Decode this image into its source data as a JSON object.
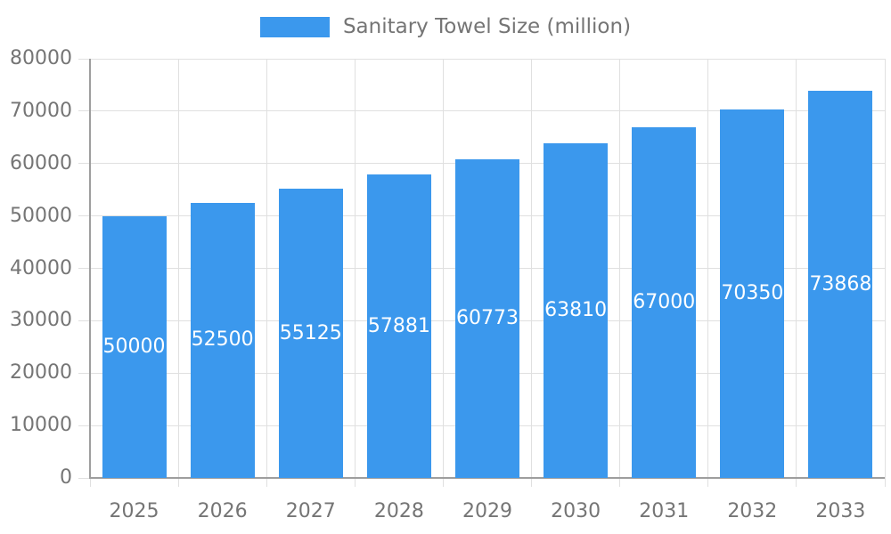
{
  "chart_data": {
    "type": "bar",
    "title": "Sanitary Towel Size (million)",
    "categories": [
      "2025",
      "2026",
      "2027",
      "2028",
      "2029",
      "2030",
      "2031",
      "2032",
      "2033"
    ],
    "values": [
      50000,
      52500,
      55125,
      57881,
      60773,
      63810,
      67000,
      70350,
      73868
    ],
    "series": [
      {
        "name": "Sanitary Towel Size (million)",
        "values": [
          50000,
          52500,
          55125,
          57881,
          60773,
          63810,
          67000,
          70350,
          73868
        ]
      }
    ],
    "value_labels": [
      "50000",
      "52500",
      "55125",
      "57881",
      "60773",
      "63810",
      "67000",
      "70350",
      "73868"
    ],
    "xlabel": "",
    "ylabel": "",
    "ylim": [
      0,
      80000
    ],
    "ytick_step": 10000,
    "ytick_labels": [
      "0",
      "10000",
      "20000",
      "30000",
      "40000",
      "50000",
      "60000",
      "70000",
      "80000"
    ],
    "legend_position": "top-center",
    "grid": "horizontal-and-vertical",
    "value_label_position": "inside-center",
    "colors": {
      "bar": "#3B98ED",
      "value_label": "#FFFFFF",
      "axis_text": "#757575",
      "legend_text": "#757575",
      "axis_line": "#9E9E9E",
      "gridline": "#E0E0E0",
      "background": "#FFFFFF"
    }
  }
}
